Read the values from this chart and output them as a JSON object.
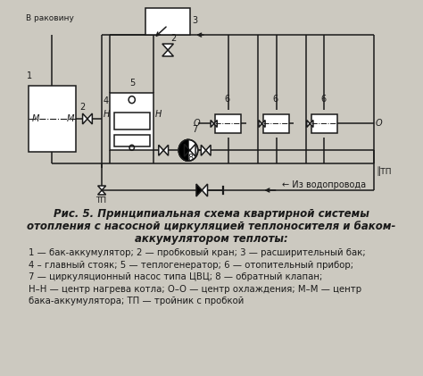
{
  "bg_color": "#ccc9c0",
  "line_color": "#1a1a1a",
  "title_line1": "Рис. 5. Принципиальная схема квартирной системы",
  "title_line2": "отопления с насосной циркуляцией теплоносителя и баком-",
  "title_line3": "аккумулятором теплоты:",
  "legend_line1": "1 — бак-аккумулятор; 2 — пробковый кран; 3 — расширительный бак;",
  "legend_line2": "4 – главный стояк; 5 — теплогенератор; 6 — отопительный прибор;",
  "legend_line3": "7 — циркуляционный насос типа ЦВЦ; 8 — обратный клапан;",
  "legend_line4": "Н–Н — центр нагрева котла; О–О — центр охлаждения; М–М — центр",
  "legend_line5": "бака-аккумулятора; ТП — тройник с пробкой"
}
